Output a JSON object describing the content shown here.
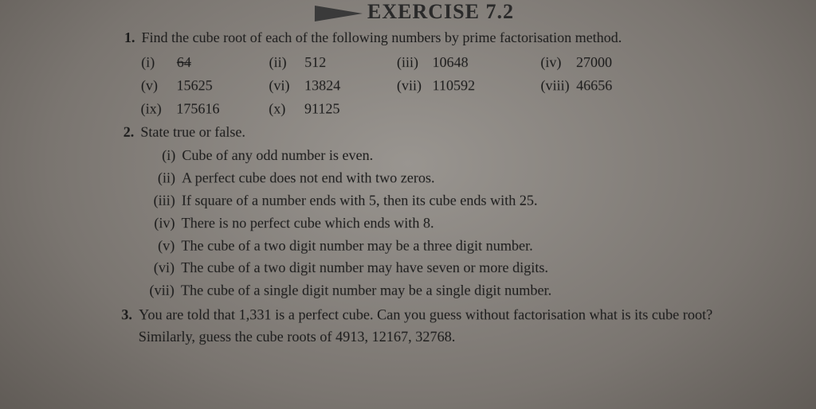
{
  "header": {
    "title": "EXERCISE 7.2"
  },
  "q1": {
    "num": "1.",
    "text": "Find the cube root of each of the following numbers by prime factorisation method.",
    "opts": [
      {
        "roman": "(i)",
        "val": "64"
      },
      {
        "roman": "(ii)",
        "val": "512"
      },
      {
        "roman": "(iii)",
        "val": "10648"
      },
      {
        "roman": "(iv)",
        "val": "27000"
      },
      {
        "roman": "(v)",
        "val": "15625"
      },
      {
        "roman": "(vi)",
        "val": "13824"
      },
      {
        "roman": "(vii)",
        "val": "110592"
      },
      {
        "roman": "(viii)",
        "val": "46656"
      },
      {
        "roman": "(ix)",
        "val": "175616"
      },
      {
        "roman": "(x)",
        "val": "91125"
      }
    ]
  },
  "q2": {
    "num": "2.",
    "text": "State true or false.",
    "items": [
      {
        "roman": "(i)",
        "text": "Cube of any odd number is even."
      },
      {
        "roman": "(ii)",
        "text": "A perfect cube does not end with two zeros."
      },
      {
        "roman": "(iii)",
        "text": "If square of a number ends with 5, then its cube ends with 25."
      },
      {
        "roman": "(iv)",
        "text": "There is no perfect cube which ends with 8."
      },
      {
        "roman": "(v)",
        "text": "The cube of a two digit number may be a three digit number."
      },
      {
        "roman": "(vi)",
        "text": "The cube of a two digit number may have seven or more digits."
      },
      {
        "roman": "(vii)",
        "text": "The cube of a single digit number may be a single digit number."
      }
    ]
  },
  "q3": {
    "num": "3.",
    "text": "You are told that 1,331 is a perfect cube. Can you guess without factorisation what is its cube root? Similarly, guess the cube roots of 4913, 12167, 32768."
  }
}
